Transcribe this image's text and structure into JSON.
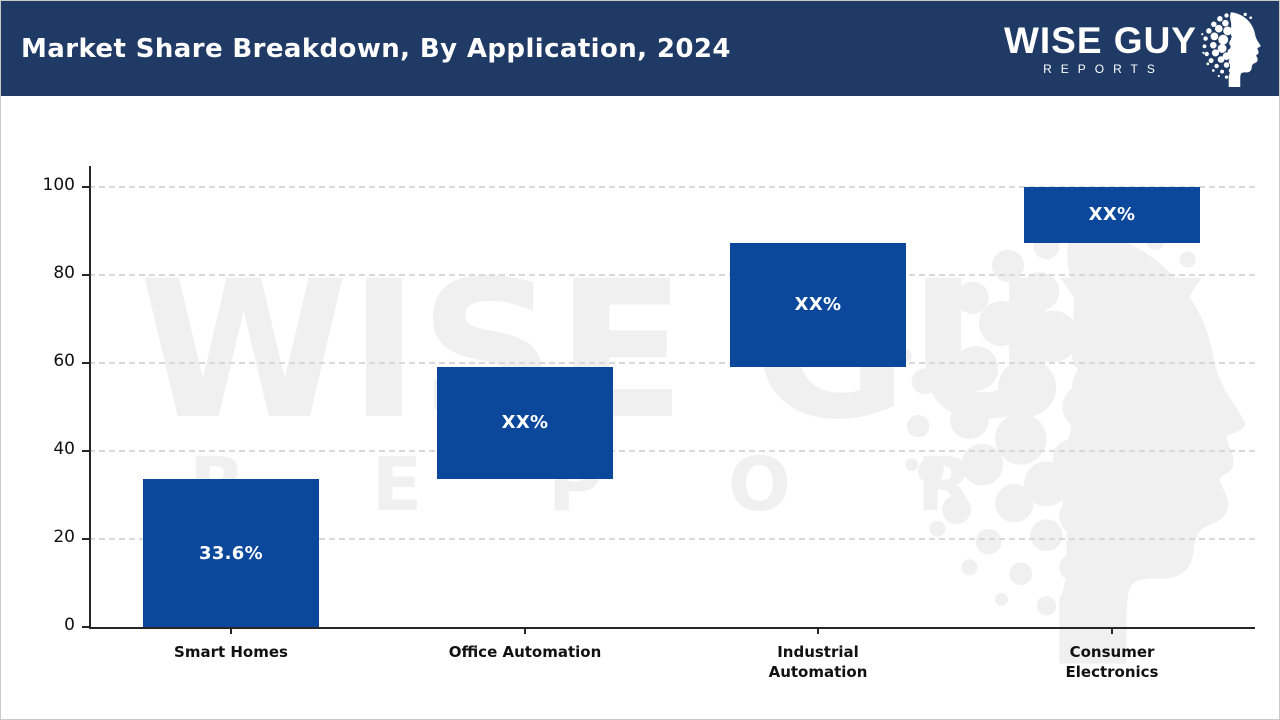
{
  "header": {
    "title": "Market Share Breakdown, By Application, 2024",
    "logo": {
      "line1": "WISE GUY",
      "line2": "REPORTS"
    }
  },
  "watermark": {
    "line1": "WISE GUY",
    "line2": "R E P O R T S"
  },
  "colors": {
    "header_bg": "#203a66",
    "bar": "#0b489c",
    "bar_label": "#ffffff",
    "grid": "#d9d9d9",
    "axis": "#262626",
    "tick_label": "#111111",
    "watermark": "#f0f0f1",
    "page_border": "#c9c9c9"
  },
  "chart_data": {
    "type": "bar",
    "subtype": "waterfall",
    "title": "Market Share Breakdown, By Application, 2024",
    "categories": [
      [
        "Smart Homes"
      ],
      [
        "Office Automation"
      ],
      [
        "Industrial",
        "Automation"
      ],
      [
        "Consumer",
        "Electronics"
      ]
    ],
    "segments": [
      {
        "name": "Smart Homes",
        "start": 0,
        "end": 33.6,
        "label": "33.6%"
      },
      {
        "name": "Office Automation",
        "start": 33.6,
        "end": 59.2,
        "label": "XX%"
      },
      {
        "name": "Industrial Automation",
        "start": 59.2,
        "end": 87.3,
        "label": "XX%"
      },
      {
        "name": "Consumer Electronics",
        "start": 87.3,
        "end": 100,
        "label": "XX%"
      }
    ],
    "yticks": [
      0,
      20,
      40,
      60,
      80,
      100
    ],
    "ylim": [
      0,
      100
    ],
    "xlabel": "",
    "ylabel": "",
    "grid": "horizontal-dashed",
    "legend": "none",
    "bar_color": "#0b489c",
    "value_label_color": "#ffffff"
  }
}
